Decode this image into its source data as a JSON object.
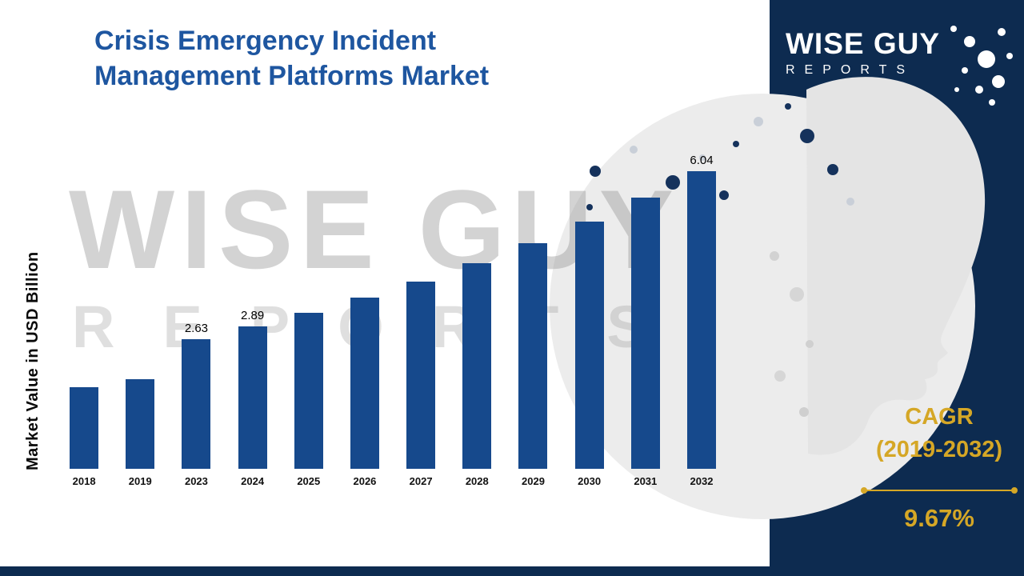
{
  "header": {
    "title_line1": "Crisis Emergency Incident",
    "title_line2": "Management Platforms Market"
  },
  "watermark": {
    "line1": "WISE GUY",
    "line2": "REPORTS"
  },
  "brand": {
    "logo_line1": "WISE GUY",
    "logo_line2": "REPORTS"
  },
  "cagr": {
    "label": "CAGR",
    "range": "(2019-2032)",
    "value": "9.67%"
  },
  "colors": {
    "title_blue": "#1e56a0",
    "bar_blue": "#16498c",
    "panel_navy": "#0d2b50",
    "gold": "#d5a726",
    "circle_gray": "#ececec",
    "background": "#ffffff"
  },
  "chart_data": {
    "type": "bar",
    "title": "Crisis Emergency Incident Management Platforms Market",
    "xlabel": "",
    "ylabel": "Market Value in USD Billion",
    "categories": [
      "2018",
      "2019",
      "2023",
      "2024",
      "2025",
      "2026",
      "2027",
      "2028",
      "2029",
      "2030",
      "2031",
      "2032"
    ],
    "values": [
      1.66,
      1.82,
      2.63,
      2.89,
      3.17,
      3.47,
      3.81,
      4.18,
      4.58,
      5.02,
      5.51,
      6.04
    ],
    "data_labels": [
      "",
      "",
      "2.63",
      "2.89",
      "",
      "",
      "",
      "",
      "",
      "",
      "",
      "6.04"
    ],
    "ylim": [
      0,
      6.5
    ],
    "grid": false,
    "legend": "none",
    "bar_color": "#16498c"
  }
}
